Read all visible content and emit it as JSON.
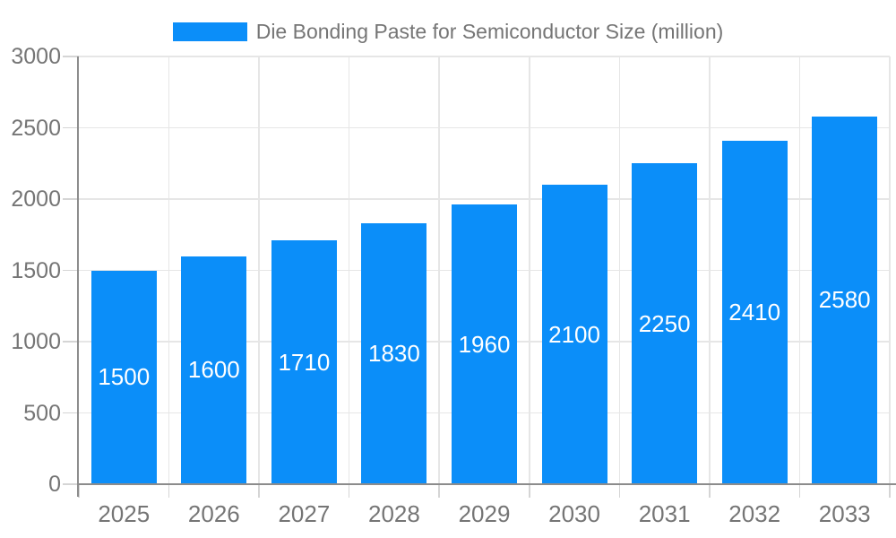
{
  "chart_data": {
    "type": "bar",
    "title": "Die Bonding Paste for Semiconductor Size (million)",
    "legend_position": "top",
    "categories": [
      "2025",
      "2026",
      "2027",
      "2028",
      "2029",
      "2030",
      "2031",
      "2032",
      "2033"
    ],
    "values": [
      1500,
      1600,
      1710,
      1830,
      1960,
      2100,
      2250,
      2410,
      2580
    ],
    "xlabel": "",
    "ylabel": "",
    "ylim": [
      0,
      3000
    ],
    "yticks": [
      0,
      500,
      1000,
      1500,
      2000,
      2500,
      3000
    ],
    "grid": true,
    "bar_value_labels_shown": true,
    "colors": {
      "bar": "#0b8ef9",
      "grid_line": "#e6e6e6",
      "axis_line": "#8c8c8c",
      "tick_line": "#d5d5d5",
      "label_text": "#757575",
      "bar_label_text": "#ffffff",
      "background": "#ffffff"
    }
  }
}
